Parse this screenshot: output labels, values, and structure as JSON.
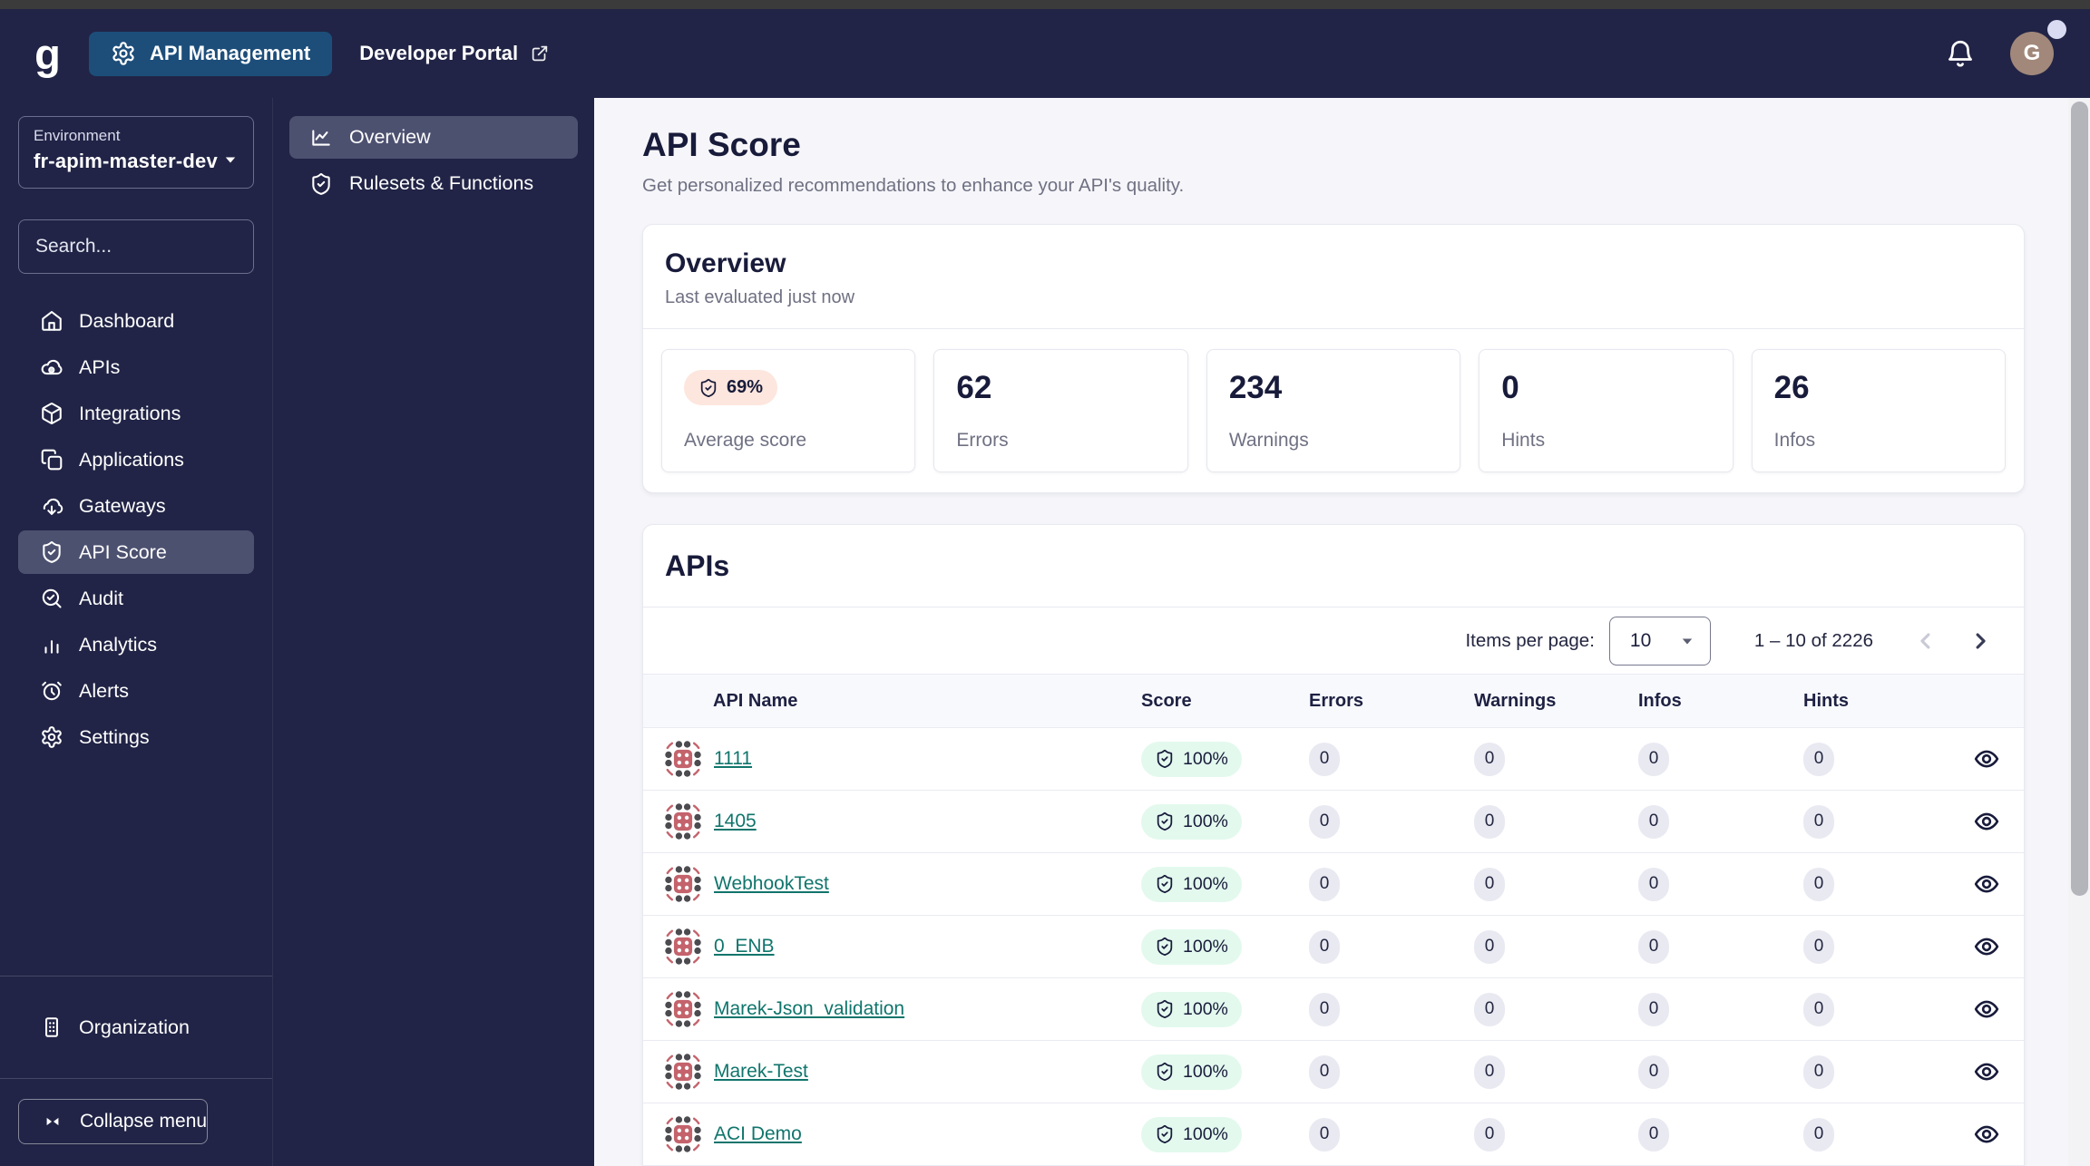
{
  "topbar": {
    "logo": "g",
    "product_tab": "API Management",
    "portal_link": "Developer Portal",
    "avatar_initial": "G"
  },
  "sidebar": {
    "environment": {
      "label": "Environment",
      "value": "fr-apim-master-dev"
    },
    "search": {
      "placeholder": "Search..."
    },
    "items": [
      {
        "label": "Dashboard",
        "icon": "home",
        "active": false
      },
      {
        "label": "APIs",
        "icon": "cloud-gear",
        "active": false
      },
      {
        "label": "Integrations",
        "icon": "cube",
        "active": false
      },
      {
        "label": "Applications",
        "icon": "applications",
        "active": false
      },
      {
        "label": "Gateways",
        "icon": "cloud-download",
        "active": false
      },
      {
        "label": "API Score",
        "icon": "shield-check",
        "active": true
      },
      {
        "label": "Audit",
        "icon": "search-check",
        "active": false
      },
      {
        "label": "Analytics",
        "icon": "bar-chart",
        "active": false
      },
      {
        "label": "Alerts",
        "icon": "alarm-clock",
        "active": false
      },
      {
        "label": "Settings",
        "icon": "gear",
        "active": false
      }
    ],
    "organization": {
      "label": "Organization",
      "icon": "building"
    },
    "collapse": {
      "label": "Collapse menu",
      "icon": "collapse"
    }
  },
  "subnav": {
    "items": [
      {
        "label": "Overview",
        "icon": "line-chart",
        "active": true
      },
      {
        "label": "Rulesets & Functions",
        "icon": "shield-check",
        "active": false
      }
    ]
  },
  "page": {
    "title": "API Score",
    "subtitle": "Get personalized recommendations to enhance your API's quality."
  },
  "overview": {
    "title": "Overview",
    "subtitle": "Last evaluated just now",
    "stats": [
      {
        "value": "69%",
        "label": "Average score",
        "style": "score-badge"
      },
      {
        "value": "62",
        "label": "Errors",
        "style": "number"
      },
      {
        "value": "234",
        "label": "Warnings",
        "style": "number"
      },
      {
        "value": "0",
        "label": "Hints",
        "style": "number"
      },
      {
        "value": "26",
        "label": "Infos",
        "style": "number"
      }
    ]
  },
  "apis": {
    "title": "APIs",
    "pagination": {
      "items_per_page_label": "Items per page:",
      "page_size": "10",
      "range": "1 – 10 of 2226"
    },
    "columns": [
      "API Name",
      "Score",
      "Errors",
      "Warnings",
      "Infos",
      "Hints"
    ],
    "rows": [
      {
        "name": "1111",
        "score": "100%",
        "errors": "0",
        "warnings": "0",
        "infos": "0",
        "hints": "0"
      },
      {
        "name": "1405",
        "score": "100%",
        "errors": "0",
        "warnings": "0",
        "infos": "0",
        "hints": "0"
      },
      {
        "name": "WebhookTest",
        "score": "100%",
        "errors": "0",
        "warnings": "0",
        "infos": "0",
        "hints": "0"
      },
      {
        "name": "0_ENB",
        "score": "100%",
        "errors": "0",
        "warnings": "0",
        "infos": "0",
        "hints": "0"
      },
      {
        "name": "Marek-Json_validation",
        "score": "100%",
        "errors": "0",
        "warnings": "0",
        "infos": "0",
        "hints": "0"
      },
      {
        "name": "Marek-Test",
        "score": "100%",
        "errors": "0",
        "warnings": "0",
        "infos": "0",
        "hints": "0"
      },
      {
        "name": "ACI Demo",
        "score": "100%",
        "errors": "0",
        "warnings": "0",
        "infos": "0",
        "hints": "0"
      }
    ]
  },
  "colors": {
    "brand_navy": "#212446",
    "active_item": "#4d5170",
    "tab_blue": "#1d4e7a",
    "link_teal": "#10756c",
    "score_mint": "#e3f9ee",
    "avg_salmon": "#fde6de",
    "pill_gray": "#e9e9f2"
  }
}
